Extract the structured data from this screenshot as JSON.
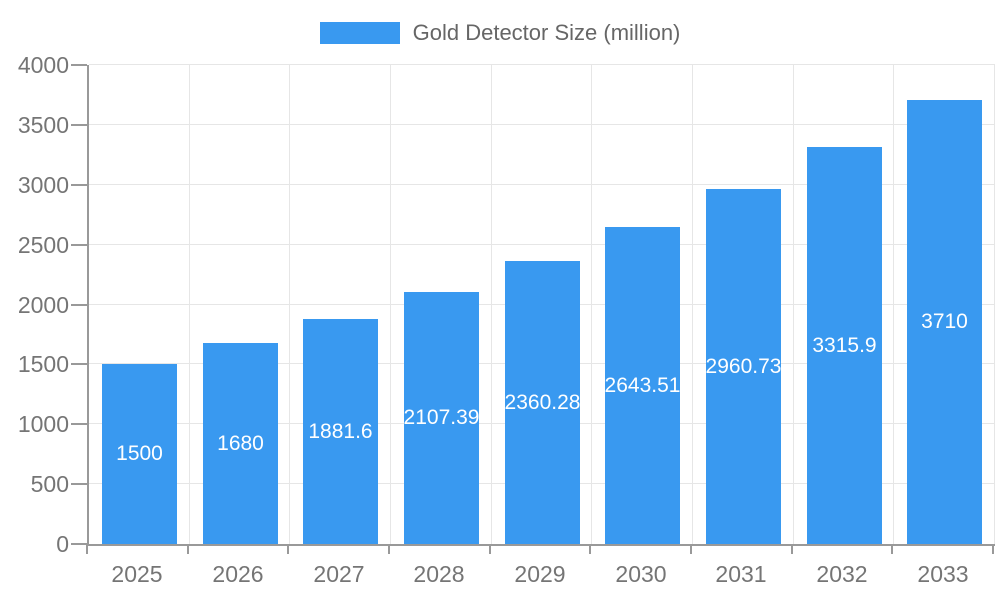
{
  "legend": {
    "label": "Gold Detector Size (million)"
  },
  "chart_data": {
    "type": "bar",
    "title": "Gold Detector Size (million)",
    "categories": [
      "2025",
      "2026",
      "2027",
      "2028",
      "2029",
      "2030",
      "2031",
      "2032",
      "2033"
    ],
    "values": [
      1500,
      1680,
      1881.6,
      2107.39,
      2360.28,
      2643.51,
      2960.73,
      3315.9,
      3710
    ],
    "value_labels": [
      "1500",
      "1680",
      "1881.6",
      "2107.39",
      "2360.28",
      "2643.51",
      "2960.73",
      "3315.9",
      "3710"
    ],
    "xlabel": "",
    "ylabel": "",
    "ylim": [
      0,
      4000
    ],
    "ytick_step": 500,
    "ytick_labels": [
      "0",
      "500",
      "1000",
      "1500",
      "2000",
      "2500",
      "3000",
      "3500",
      "4000"
    ],
    "grid": true,
    "legend_position": "top-center",
    "colors": {
      "bar": "#3999F0",
      "grid": "#e6e6e6",
      "axis": "#999999",
      "axis_text": "#757575",
      "legend_text": "#666666",
      "value_text": "#ffffff",
      "background": "#ffffff"
    }
  }
}
